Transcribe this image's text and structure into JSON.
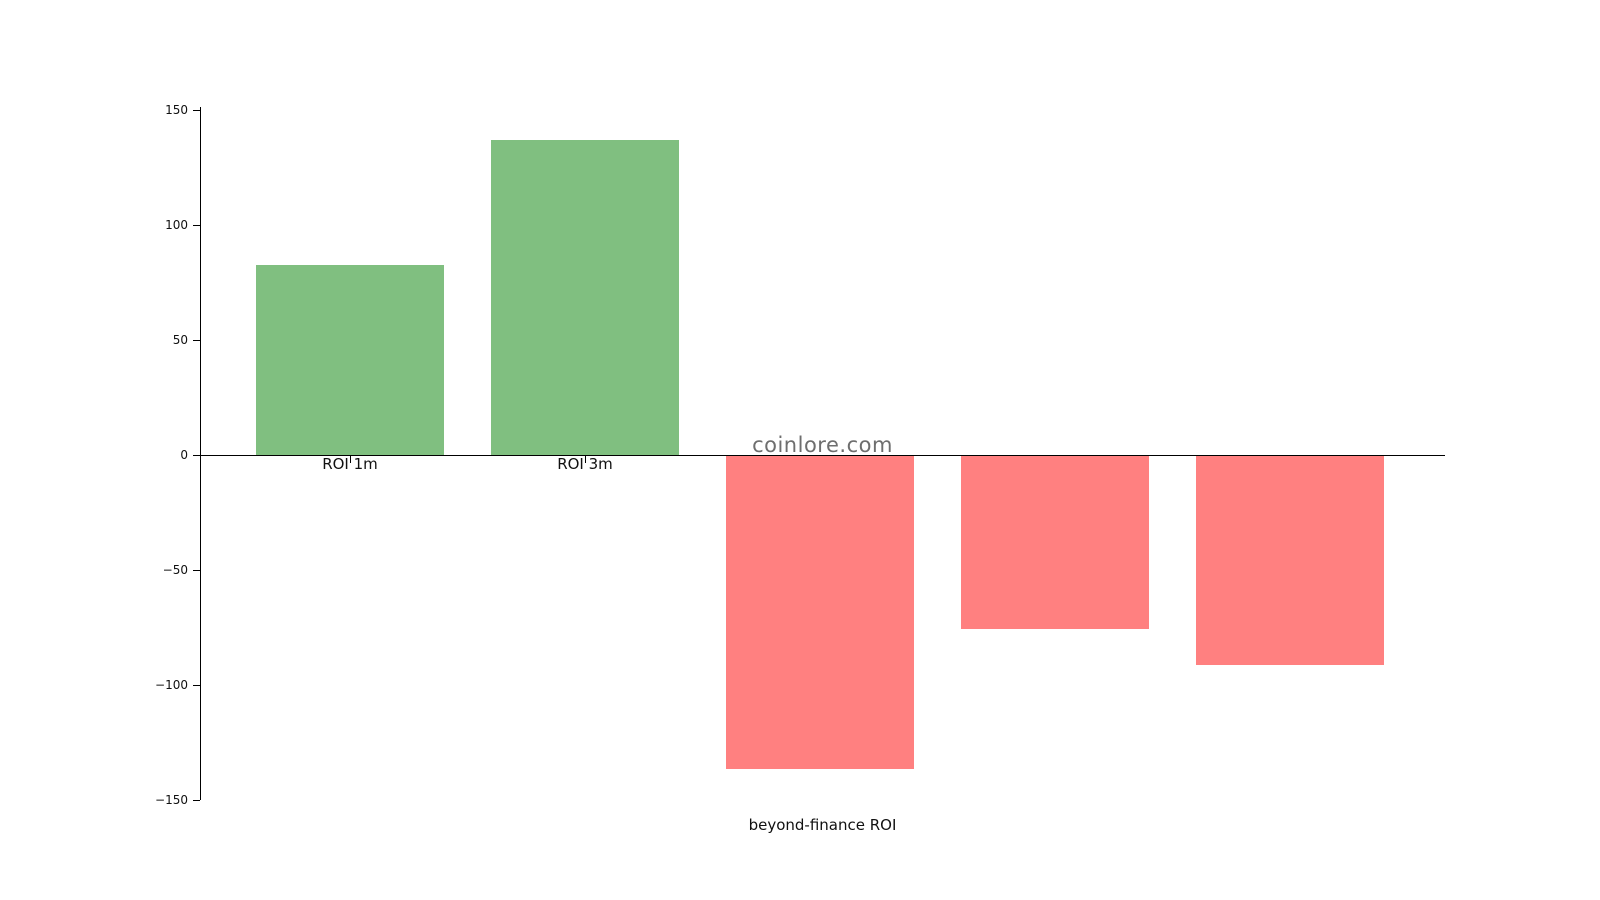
{
  "watermark": {
    "text": "coinlore.com",
    "color": "#6e6e6e"
  },
  "chart_data": {
    "type": "bar",
    "title": "",
    "xlabel": "beyond-finance ROI",
    "ylabel": "",
    "categories": [
      "ROI 1m",
      "ROI 3m",
      "",
      "",
      ""
    ],
    "values": [
      82.4,
      137.1,
      -136.3,
      -75.4,
      -90.7
    ],
    "series_note": "single series; positive bars green, negative bars red; x tick marks and labels for the three negative bars are hidden underneath the red bars",
    "bar_colors": {
      "positive": "#80bf80",
      "negative": "#ff8080"
    },
    "ylim": [
      -150,
      150
    ],
    "y_ticks": [
      150,
      100,
      50,
      0,
      -50,
      -100,
      -150
    ],
    "y_tick_labels": [
      "150",
      "100",
      "50",
      "0",
      "−50",
      "−100",
      "−150"
    ],
    "grid": false,
    "legend": null,
    "axis_color": "#000000",
    "background": "#ffffff"
  }
}
